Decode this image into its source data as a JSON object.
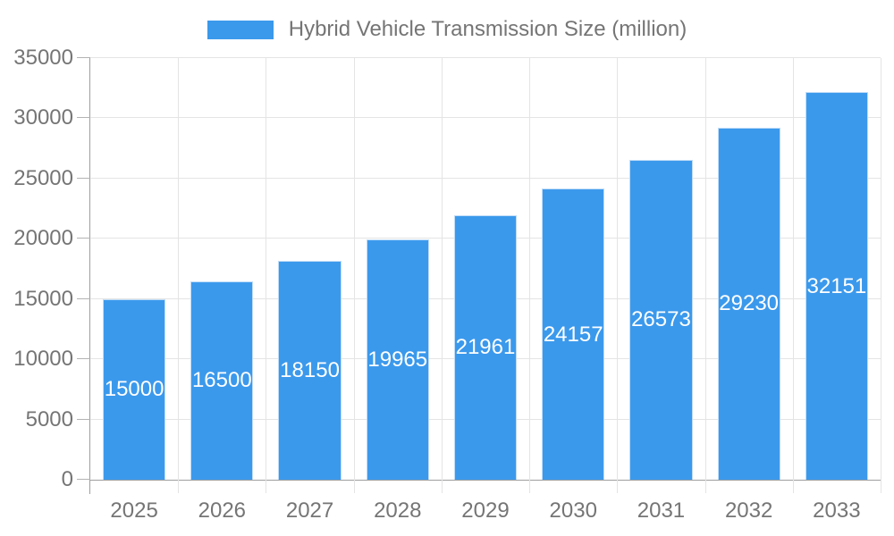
{
  "page": {
    "background": "#FFFFFF"
  },
  "legend": {
    "label": "Hybrid Vehicle Transmission Size (million)"
  },
  "colors": {
    "bar": "#3B99EC",
    "bar_edge": "#BFDCF7",
    "axis": "#9E9E9E",
    "tick": "#B3B3B3",
    "grid": "#E4E4E4",
    "text": "#757575",
    "value_text": "#FFFFFF",
    "background": "#FFFFFF"
  },
  "chart_data": {
    "type": "bar",
    "title": "Hybrid Vehicle Transmission Size (million)",
    "series_name": "Hybrid Vehicle Transmission Size (million)",
    "categories": [
      "2025",
      "2026",
      "2027",
      "2028",
      "2029",
      "2030",
      "2031",
      "2032",
      "2033"
    ],
    "values": [
      15000,
      16500,
      18150,
      19965,
      21961,
      24157,
      26573,
      29230,
      32151
    ],
    "xlabel": "",
    "ylabel": "",
    "ylim": [
      0,
      35000
    ],
    "yticks": [
      0,
      5000,
      10000,
      15000,
      20000,
      25000,
      30000,
      35000
    ],
    "grid": true,
    "legend_position": "top-center",
    "value_labels": "inside-middle"
  }
}
